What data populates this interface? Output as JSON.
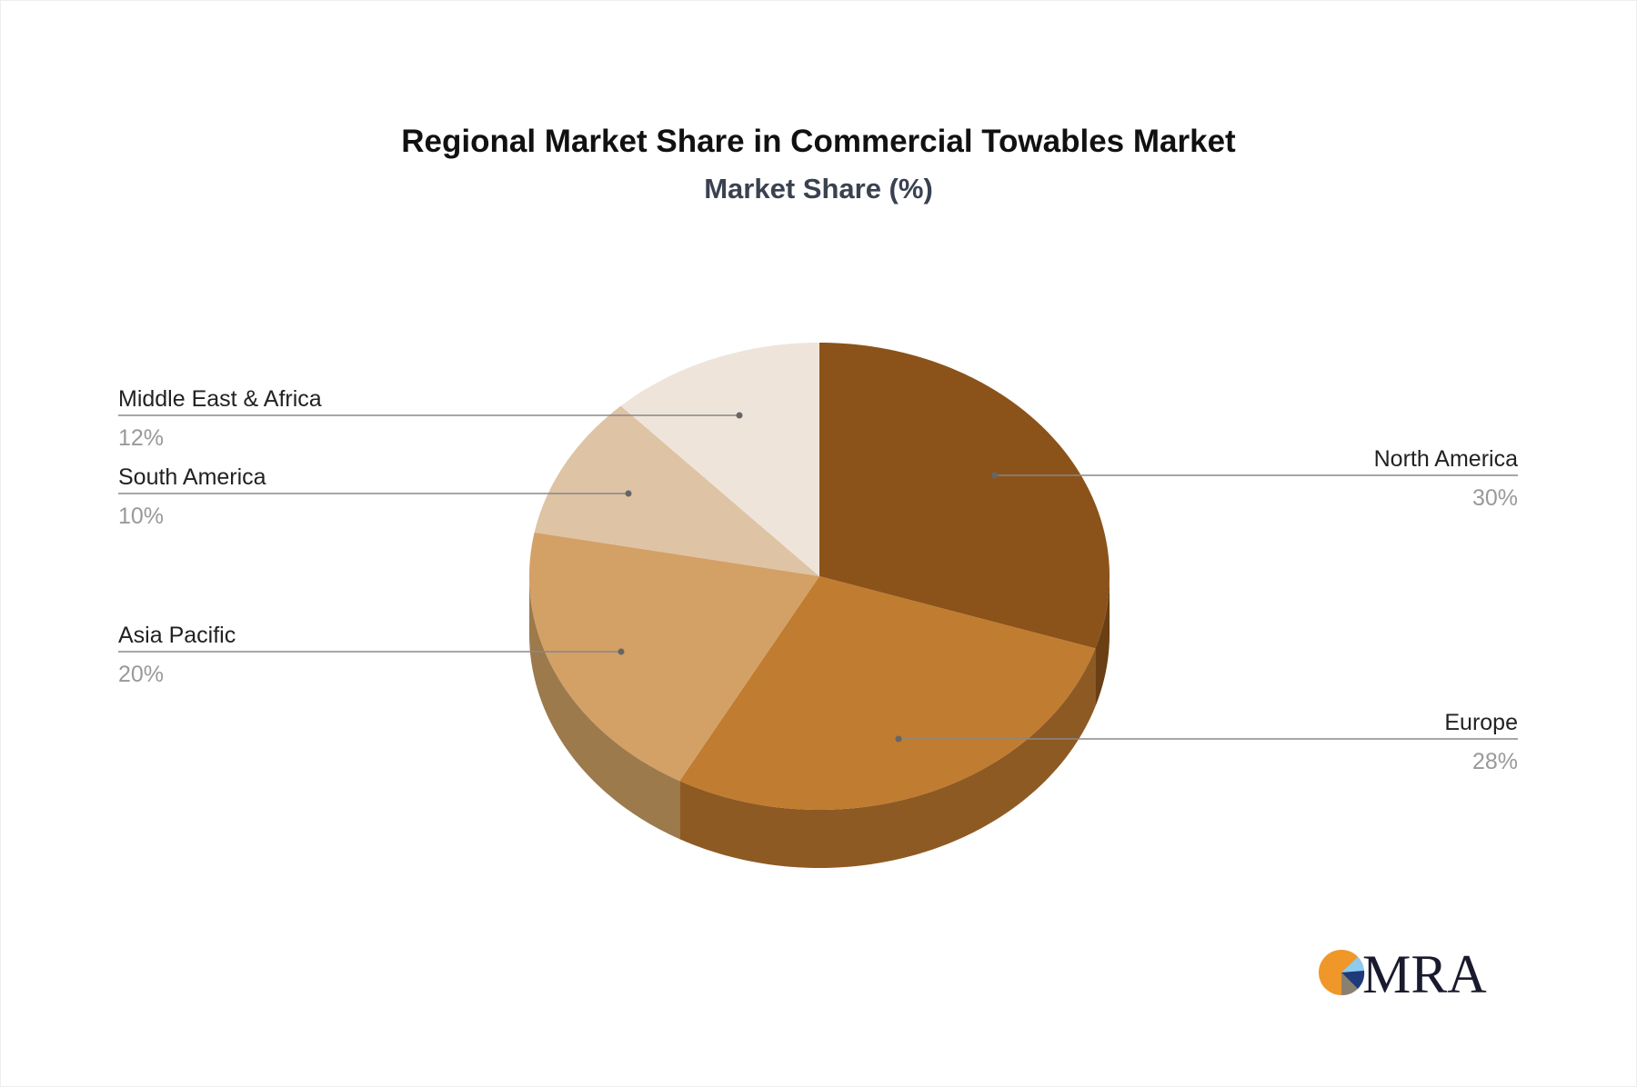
{
  "chart_data": {
    "type": "pie",
    "title": "Regional Market Share in Commercial Towables Market",
    "subtitle": "Market Share (%)",
    "three_d": true,
    "slices": [
      {
        "label": "North America",
        "value": 30,
        "display": "30%",
        "color": "#8B531A",
        "side_color": "#6A3F14"
      },
      {
        "label": "Europe",
        "value": 28,
        "display": "28%",
        "color": "#C07C30",
        "side_color": "#8E5A24"
      },
      {
        "label": "Asia Pacific",
        "value": 20,
        "display": "20%",
        "color": "#D3A066",
        "side_color": "#9C7A4C"
      },
      {
        "label": "South America",
        "value": 10,
        "display": "10%",
        "color": "#DEC3A4",
        "side_color": "#A8917A"
      },
      {
        "label": "Middle East & Africa",
        "value": 12,
        "display": "12%",
        "color": "#EEE4DA",
        "side_color": "#B3AAA2"
      }
    ]
  },
  "logo": {
    "text": "MRA"
  }
}
